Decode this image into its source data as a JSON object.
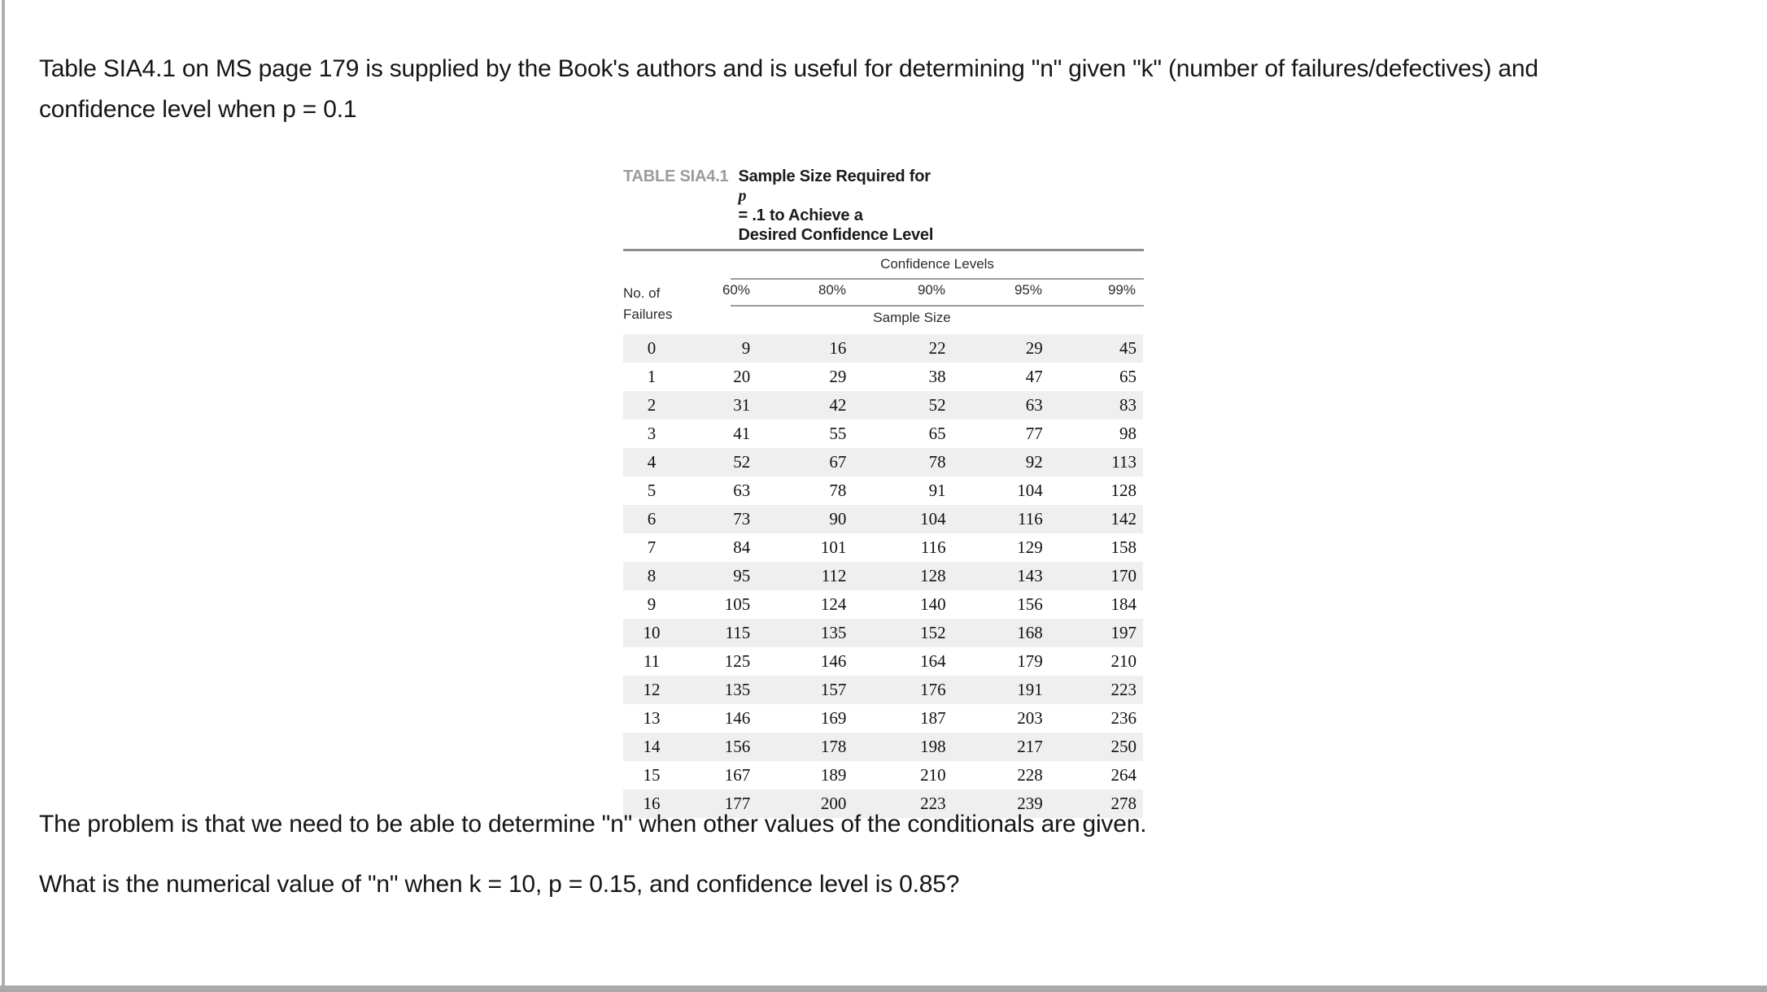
{
  "page": {
    "intro_line1": "Table SIA4.1 on MS page 179 is supplied by the Book's authors and is useful for determining \"n\" given \"k\" (number of failures/defectives) and",
    "intro_line2": "confidence level when p = 0.1",
    "problem_text": "The problem is that we need to be able to determine \"n\" when other values of the conditionals are given.",
    "question_text": "What is the numerical value of \"n\" when k = 10, p = 0.15, and confidence level is 0.85?"
  },
  "table": {
    "label": "TABLE SIA4.1",
    "title": {
      "pre": "Sample Size Required for ",
      "var": "p",
      "post": " = .1 to Achieve a",
      "line2": "Desired Confidence Level"
    },
    "group_header": "Confidence Levels",
    "row_header_line1": "No. of",
    "row_header_line2": "Failures",
    "span_header": "Sample Size",
    "col_headers": [
      "60%",
      "80%",
      "90%",
      "95%",
      "99%"
    ],
    "rows": [
      [
        0,
        9,
        16,
        22,
        29,
        45
      ],
      [
        1,
        20,
        29,
        38,
        47,
        65
      ],
      [
        2,
        31,
        42,
        52,
        63,
        83
      ],
      [
        3,
        41,
        55,
        65,
        77,
        98
      ],
      [
        4,
        52,
        67,
        78,
        92,
        113
      ],
      [
        5,
        63,
        78,
        91,
        104,
        128
      ],
      [
        6,
        73,
        90,
        104,
        116,
        142
      ],
      [
        7,
        84,
        101,
        116,
        129,
        158
      ],
      [
        8,
        95,
        112,
        128,
        143,
        170
      ],
      [
        9,
        105,
        124,
        140,
        156,
        184
      ],
      [
        10,
        115,
        135,
        152,
        168,
        197
      ],
      [
        11,
        125,
        146,
        164,
        179,
        210
      ],
      [
        12,
        135,
        157,
        176,
        191,
        223
      ],
      [
        13,
        146,
        169,
        187,
        203,
        236
      ],
      [
        14,
        156,
        178,
        198,
        217,
        250
      ],
      [
        15,
        167,
        189,
        210,
        228,
        264
      ],
      [
        16,
        177,
        200,
        223,
        239,
        278
      ]
    ]
  },
  "colors": {
    "row_shade": "#efefef",
    "rule_dark": "#8c8c8c",
    "rule_light": "#9c9c9c",
    "table_label_gray": "#9b9b9b",
    "page_left_border": "#aeaeae",
    "bottom_bar": "#a9a9a9",
    "text": "#161616"
  }
}
